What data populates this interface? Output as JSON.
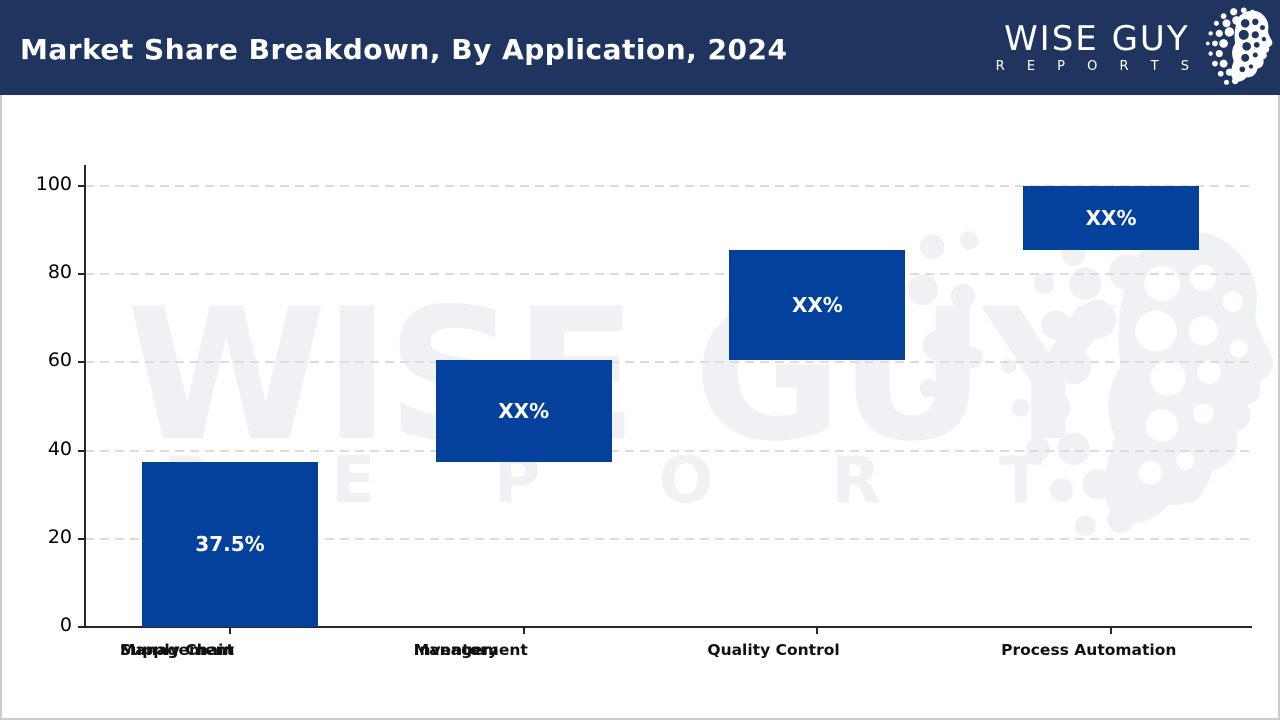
{
  "header": {
    "title": "Market Share Breakdown, By Application, 2024",
    "bg_color": "#1f3560",
    "logo": {
      "wordmark": "WISE GUY",
      "subtext": "R E P O R T S"
    }
  },
  "watermark": {
    "wordmark": "WISE GUY",
    "subtext": "R E P O R T S"
  },
  "chart_data": {
    "type": "bar",
    "subtype": "waterfall",
    "title": "Market Share Breakdown, By Application, 2024",
    "categories": [
      "Supply Chain Management",
      "Inventory Management",
      "Quality Control",
      "Process Automation"
    ],
    "category_lines": [
      [
        "Supply Chain",
        "Management"
      ],
      [
        "Inventory",
        "Management"
      ],
      [
        "Quality Control"
      ],
      [
        "Process Automation"
      ]
    ],
    "segments": [
      {
        "category": "Supply Chain Management",
        "start": 0,
        "end": 37.5,
        "label": "37.5%"
      },
      {
        "category": "Inventory Management",
        "start": 37.5,
        "end": 60.5,
        "label": "XX%"
      },
      {
        "category": "Quality Control",
        "start": 60.5,
        "end": 85.5,
        "label": "XX%"
      },
      {
        "category": "Process Automation",
        "start": 85.5,
        "end": 100,
        "label": "XX%"
      }
    ],
    "ylim": [
      0,
      100
    ],
    "yticks": [
      0,
      20,
      40,
      60,
      80,
      100
    ],
    "xlabel": "",
    "ylabel": "",
    "bar_color": "#04419c",
    "grid": "horizontal-dashed",
    "legend": "none"
  }
}
